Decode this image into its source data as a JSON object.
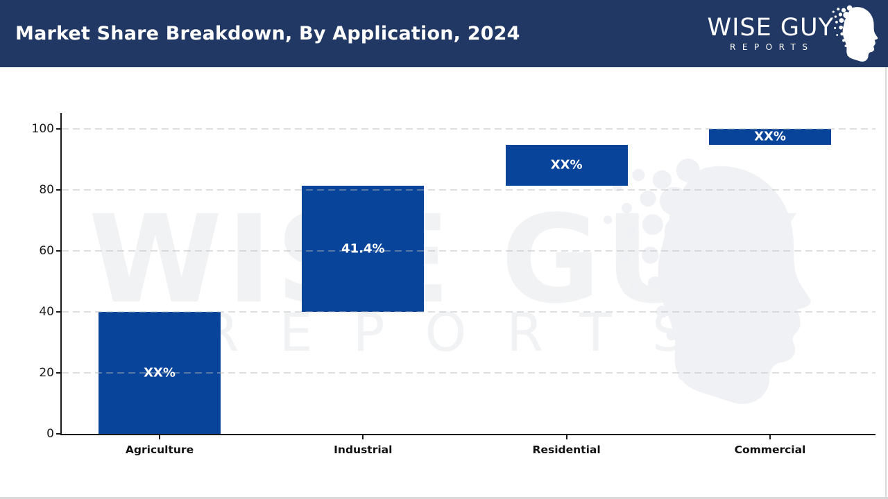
{
  "header": {
    "title": "Market Share Breakdown, By Application, 2024",
    "logo": {
      "line1": "WISE GUY",
      "line2": "REPORTS"
    }
  },
  "watermark": {
    "line1": "WISE GUY",
    "line2": "REPORTS"
  },
  "colors": {
    "header_bg": "#213864",
    "bar": "#08449a",
    "watermark_gray": "#f1f2f4",
    "frame_gray": "#d9d9d9"
  },
  "chart_data": {
    "type": "bar",
    "subtype": "waterfall",
    "title": "Market Share Breakdown, By Application, 2024",
    "categories": [
      "Agriculture",
      "Industrial",
      "Residential",
      "Commercial"
    ],
    "series": [
      {
        "name": "Market Share",
        "segments": [
          {
            "category": "Agriculture",
            "start": 0,
            "end": 40,
            "label": "XX%"
          },
          {
            "category": "Industrial",
            "start": 40,
            "end": 81.4,
            "label": "41.4%"
          },
          {
            "category": "Residential",
            "start": 81.4,
            "end": 94.8,
            "label": "XX%"
          },
          {
            "category": "Commercial",
            "start": 94.8,
            "end": 100,
            "label": "XX%"
          }
        ]
      }
    ],
    "ylim": [
      0,
      100
    ],
    "yticks": [
      0,
      20,
      40,
      60,
      80,
      100
    ],
    "xlabel": "",
    "ylabel": "",
    "grid": "horizontal-dashed",
    "legend": "none",
    "bar_color": "#08449a",
    "bar_label_color": "#ffffff"
  }
}
